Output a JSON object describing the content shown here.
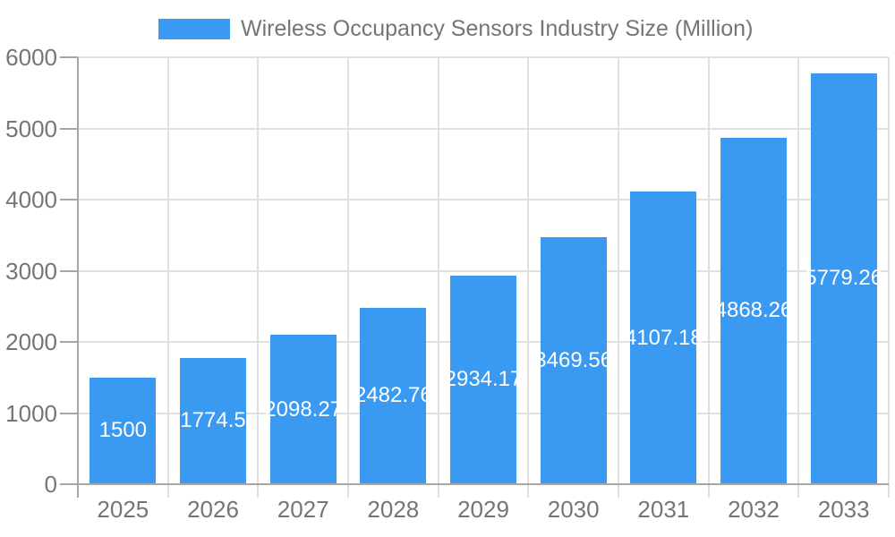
{
  "chart_data": {
    "type": "bar",
    "title": "Wireless Occupancy Sensors Industry Size (Million)",
    "legend_position": "top",
    "categories": [
      "2025",
      "2026",
      "2027",
      "2028",
      "2029",
      "2030",
      "2031",
      "2032",
      "2033"
    ],
    "series": [
      {
        "name": "Wireless Occupancy Sensors Industry Size (Million)",
        "values": [
          1500,
          1774.5,
          2098.27,
          2482.76,
          2934.17,
          3469.56,
          4107.18,
          4868.26,
          5779.26
        ]
      }
    ],
    "value_labels": [
      "1500",
      "1774.5",
      "2098.27",
      "2482.76",
      "2934.17",
      "3469.56",
      "4107.18",
      "4868.26",
      "5779.26"
    ],
    "xlabel": "",
    "ylabel": "",
    "ylim": [
      0,
      6000
    ],
    "y_ticks": [
      "0",
      "1000",
      "2000",
      "3000",
      "4000",
      "5000",
      "6000"
    ],
    "grid": true,
    "colors": {
      "bar": "#3a99f0",
      "bar_label": "#ffffff",
      "axis_text": "#757575",
      "gridline": "#e0e0e0",
      "axis_line": "#a6a6a6",
      "background": "#ffffff"
    }
  }
}
